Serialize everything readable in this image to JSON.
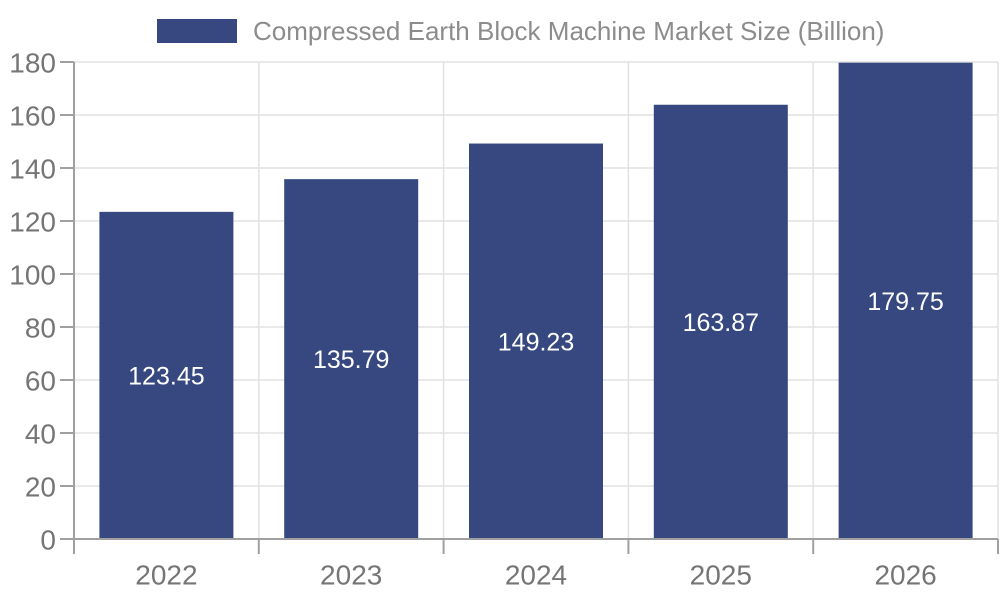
{
  "legend": {
    "label": "Compressed Earth Block Machine Market Size (Billion)"
  },
  "chart_data": {
    "type": "bar",
    "title": "Compressed Earth Block Machine Market Size (Billion)",
    "categories": [
      "2022",
      "2023",
      "2024",
      "2025",
      "2026"
    ],
    "values": [
      123.45,
      135.79,
      149.23,
      163.87,
      179.75
    ],
    "value_labels": [
      "123.45",
      "135.79",
      "149.23",
      "163.87",
      "179.75"
    ],
    "xlabel": "",
    "ylabel": "",
    "ylim": [
      0,
      180
    ],
    "yticks": [
      0,
      20,
      40,
      60,
      80,
      100,
      120,
      140,
      160,
      180
    ],
    "grid": true,
    "legend_position": "top-center",
    "value_label_position": "inside-center",
    "colors": {
      "bar": "#36487f",
      "value_label": "#ffffff",
      "axis_line": "#a0a0a0",
      "gridline": "#e2e2e2",
      "tick_label": "#757575",
      "legend_label": "#8c8c8c",
      "background": "#ffffff"
    }
  }
}
